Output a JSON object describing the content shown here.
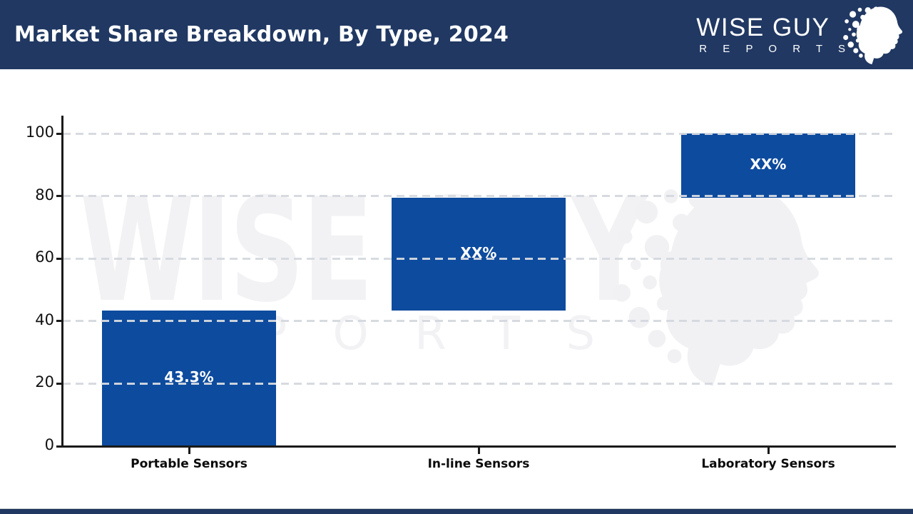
{
  "header": {
    "title": "Market Share Breakdown, By Type, 2024",
    "brand": {
      "name_line1": "WISE GUY",
      "name_line2": "R E P O R T S"
    },
    "bg_color": "#203862"
  },
  "watermark": {
    "line1": "WISE GUY",
    "line2": "R E P O R T S"
  },
  "chart_data": {
    "type": "bar",
    "subtype": "waterfall",
    "title": "Market Share Breakdown, By Type, 2024",
    "categories": [
      "Portable Sensors",
      "In-line Sensors",
      "Laboratory Sensors"
    ],
    "segments": [
      {
        "category": "Portable Sensors",
        "start": 0,
        "end": 43.3,
        "label": "43.3%"
      },
      {
        "category": "In-line Sensors",
        "start": 43.3,
        "end": 79.4,
        "label": "XX%"
      },
      {
        "category": "Laboratory Sensors",
        "start": 79.4,
        "end": 100,
        "label": "XX%"
      }
    ],
    "xlabel": "",
    "ylabel": "",
    "ylim": [
      0,
      100
    ],
    "yticks": [
      0,
      20,
      40,
      60,
      80,
      100
    ],
    "grid": "horizontal-dashed",
    "legend": "none",
    "bar_color": "#0d4b9e",
    "label_color": "#ffffff",
    "axis_color": "#1a1a1a"
  }
}
